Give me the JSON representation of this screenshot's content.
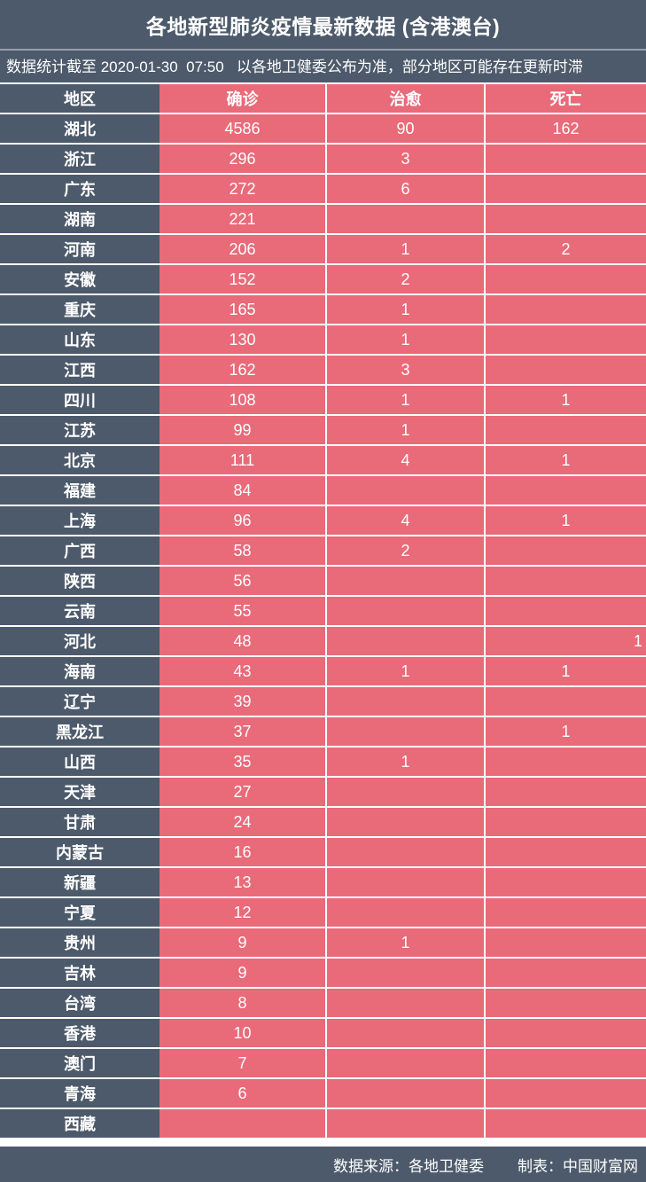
{
  "title": "各地新型肺炎疫情最新数据 (含港澳台)",
  "subtitle": "数据统计截至 2020-01-30  07:50   以各地卫健委公布为准，部分地区可能存在更新时滞",
  "footer": {
    "source_label": "数据来源：各地卫健委",
    "maker_label": "制表：中国财富网"
  },
  "colors": {
    "slate": "#4d5a6b",
    "red": "#e96a79",
    "grid": "#ffffff",
    "text": "#ffffff"
  },
  "chart_data": {
    "type": "table",
    "title": "各地新型肺炎疫情最新数据 (含港澳台)",
    "columns": [
      "地区",
      "确诊",
      "治愈",
      "死亡"
    ],
    "rows": [
      [
        "湖北",
        4586,
        90,
        162
      ],
      [
        "浙江",
        296,
        3,
        null
      ],
      [
        "广东",
        272,
        6,
        null
      ],
      [
        "湖南",
        221,
        null,
        null
      ],
      [
        "河南",
        206,
        1,
        2
      ],
      [
        "安徽",
        152,
        2,
        null
      ],
      [
        "重庆",
        165,
        1,
        null
      ],
      [
        "山东",
        130,
        1,
        null
      ],
      [
        "江西",
        162,
        3,
        null
      ],
      [
        "四川",
        108,
        1,
        1
      ],
      [
        "江苏",
        99,
        1,
        null
      ],
      [
        "北京",
        111,
        4,
        1
      ],
      [
        "福建",
        84,
        null,
        null
      ],
      [
        "上海",
        96,
        4,
        1
      ],
      [
        "广西",
        58,
        2,
        null
      ],
      [
        "陕西",
        56,
        null,
        null
      ],
      [
        "云南",
        55,
        null,
        null
      ],
      [
        "河北",
        48,
        null,
        1
      ],
      [
        "海南",
        43,
        1,
        1
      ],
      [
        "辽宁",
        39,
        null,
        null
      ],
      [
        "黑龙江",
        37,
        null,
        1
      ],
      [
        "山西",
        35,
        1,
        null
      ],
      [
        "天津",
        27,
        null,
        null
      ],
      [
        "甘肃",
        24,
        null,
        null
      ],
      [
        "内蒙古",
        16,
        null,
        null
      ],
      [
        "新疆",
        13,
        null,
        null
      ],
      [
        "宁夏",
        12,
        null,
        null
      ],
      [
        "贵州",
        9,
        1,
        null
      ],
      [
        "吉林",
        9,
        null,
        null
      ],
      [
        "台湾",
        8,
        null,
        null
      ],
      [
        "香港",
        10,
        null,
        null
      ],
      [
        "澳门",
        7,
        null,
        null
      ],
      [
        "青海",
        6,
        null,
        null
      ],
      [
        "西藏",
        null,
        null,
        null
      ]
    ],
    "deaths_right_aligned_regions": [
      "河北"
    ]
  }
}
